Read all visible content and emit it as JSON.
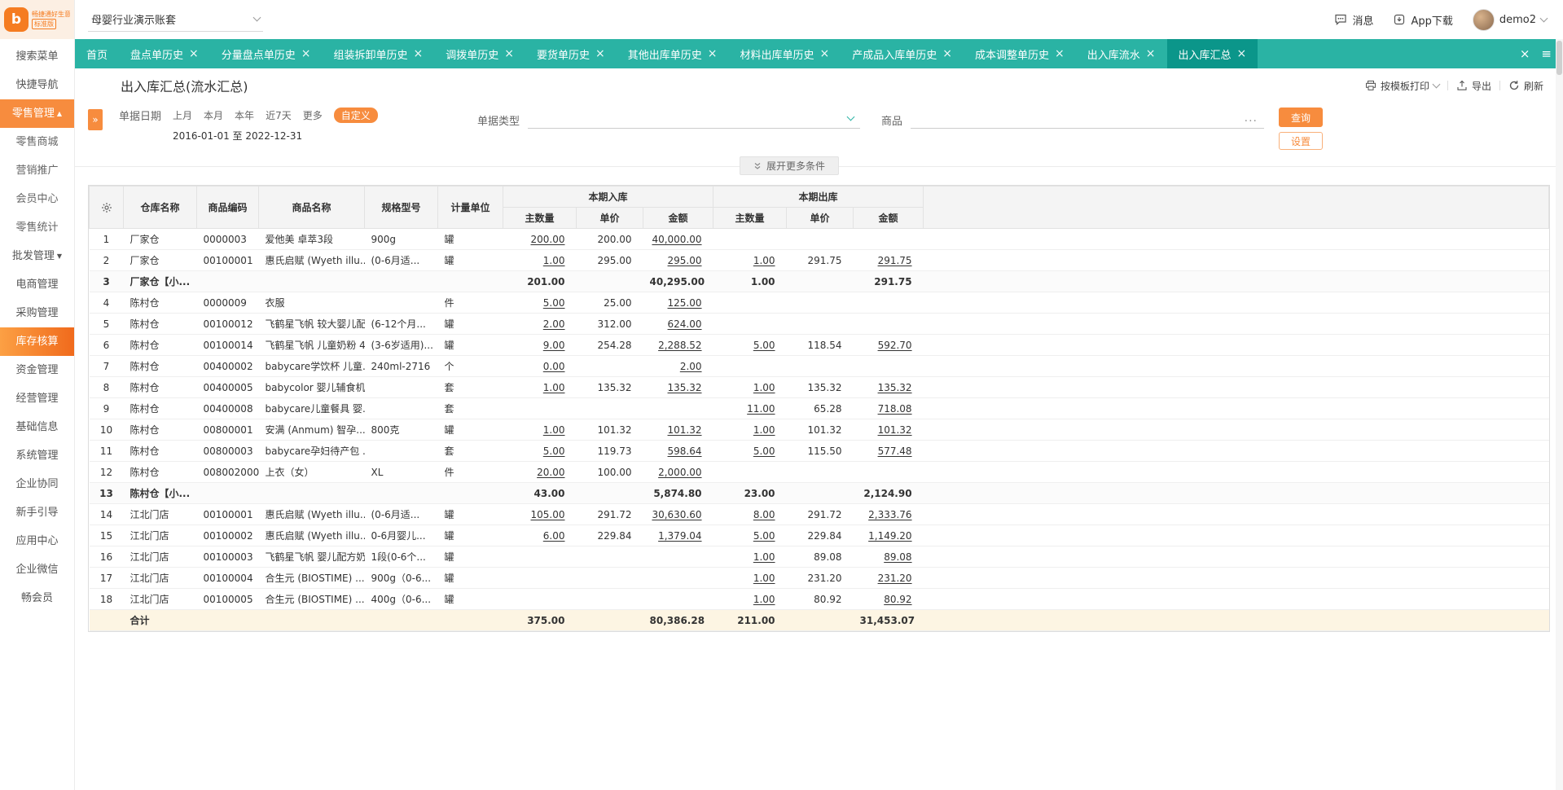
{
  "topbar": {
    "logo_title": "畅捷通好生意",
    "logo_badge": "标准版",
    "account_select": "母婴行业演示账套",
    "messages_label": "消息",
    "app_download_label": "App下载",
    "username": "demo2"
  },
  "tabs": [
    {
      "label": "首页",
      "closable": false,
      "active": false
    },
    {
      "label": "盘点单历史",
      "closable": true,
      "active": false
    },
    {
      "label": "分量盘点单历史",
      "closable": true,
      "active": false
    },
    {
      "label": "组装拆卸单历史",
      "closable": true,
      "active": false
    },
    {
      "label": "调拨单历史",
      "closable": true,
      "active": false
    },
    {
      "label": "要货单历史",
      "closable": true,
      "active": false
    },
    {
      "label": "其他出库单历史",
      "closable": true,
      "active": false
    },
    {
      "label": "材料出库单历史",
      "closable": true,
      "active": false
    },
    {
      "label": "产成品入库单历史",
      "closable": true,
      "active": false
    },
    {
      "label": "成本调整单历史",
      "closable": true,
      "active": false
    },
    {
      "label": "出入库流水",
      "closable": true,
      "active": false
    },
    {
      "label": "出入库汇总",
      "closable": true,
      "active": true
    }
  ],
  "sidebar": [
    {
      "label": "搜索菜单",
      "type": "plain"
    },
    {
      "label": "快捷导航",
      "type": "plain"
    },
    {
      "label": "零售管理",
      "type": "group-open",
      "arrow": "up"
    },
    {
      "label": "零售商城",
      "type": "child"
    },
    {
      "label": "营销推广",
      "type": "child"
    },
    {
      "label": "会员中心",
      "type": "child"
    },
    {
      "label": "零售统计",
      "type": "child"
    },
    {
      "label": "批发管理",
      "type": "group",
      "arrow": "down"
    },
    {
      "label": "电商管理",
      "type": "plain"
    },
    {
      "label": "采购管理",
      "type": "plain"
    },
    {
      "label": "库存核算",
      "type": "active"
    },
    {
      "label": "资金管理",
      "type": "plain"
    },
    {
      "label": "经营管理",
      "type": "plain"
    },
    {
      "label": "基础信息",
      "type": "plain"
    },
    {
      "label": "系统管理",
      "type": "plain"
    },
    {
      "label": "企业协同",
      "type": "plain"
    },
    {
      "label": "新手引导",
      "type": "plain"
    },
    {
      "label": "应用中心",
      "type": "plain"
    },
    {
      "label": "企业微信",
      "type": "plain"
    },
    {
      "label": "畅会员",
      "type": "plain"
    }
  ],
  "page": {
    "title": "出入库汇总(流水汇总)",
    "print_label": "按模板打印",
    "export_label": "导出",
    "refresh_label": "刷新"
  },
  "filters": {
    "date_label": "单据日期",
    "date_options": [
      "上月",
      "本月",
      "本年",
      "近7天",
      "更多"
    ],
    "custom_badge": "自定义",
    "date_range": "2016-01-01 至 2022-12-31",
    "doc_type_label": "单据类型",
    "product_label": "商品",
    "query_button": "查询",
    "settings_button": "设置",
    "expand_more": "展开更多条件"
  },
  "colors": {
    "teal": "#2ab3a4",
    "teal_active": "#0b968a",
    "orange": "#f78c3e",
    "total_row_bg": "#fdf5e3"
  },
  "table": {
    "headers": {
      "warehouse": "仓库名称",
      "code": "商品编码",
      "name": "商品名称",
      "spec": "规格型号",
      "unit": "计量单位",
      "in_group": "本期入库",
      "out_group": "本期出库",
      "qty": "主数量",
      "price": "单价",
      "amount": "金额"
    },
    "rows": [
      {
        "idx": "1",
        "warehouse": "厂家仓",
        "code": "0000003",
        "name": "爱他美 卓萃3段",
        "spec": "900g",
        "unit": "罐",
        "in_qty": "200.00",
        "in_price": "200.00",
        "in_amount": "40,000.00",
        "out_qty": "",
        "out_price": "",
        "out_amount": "",
        "type": "normal"
      },
      {
        "idx": "2",
        "warehouse": "厂家仓",
        "code": "00100001",
        "name": "惠氏启赋 (Wyeth illu...",
        "spec": "(0-6月适...",
        "unit": "罐",
        "in_qty": "1.00",
        "in_price": "295.00",
        "in_amount": "295.00",
        "out_qty": "1.00",
        "out_price": "291.75",
        "out_amount": "291.75",
        "type": "normal"
      },
      {
        "idx": "3",
        "warehouse": "厂家仓【小...",
        "code": "",
        "name": "",
        "spec": "",
        "unit": "",
        "in_qty": "201.00",
        "in_price": "",
        "in_amount": "40,295.00",
        "out_qty": "1.00",
        "out_price": "",
        "out_amount": "291.75",
        "type": "subtotal"
      },
      {
        "idx": "4",
        "warehouse": "陈村仓",
        "code": "0000009",
        "name": "衣服",
        "spec": "",
        "unit": "件",
        "in_qty": "5.00",
        "in_price": "25.00",
        "in_amount": "125.00",
        "out_qty": "",
        "out_price": "",
        "out_amount": "",
        "type": "normal"
      },
      {
        "idx": "5",
        "warehouse": "陈村仓",
        "code": "00100012",
        "name": "飞鹤星飞帆 较大婴儿配...",
        "spec": "(6-12个月...",
        "unit": "罐",
        "in_qty": "2.00",
        "in_price": "312.00",
        "in_amount": "624.00",
        "out_qty": "",
        "out_price": "",
        "out_amount": "",
        "type": "normal"
      },
      {
        "idx": "6",
        "warehouse": "陈村仓",
        "code": "00100014",
        "name": "飞鹤星飞帆 儿童奶粉 4...",
        "spec": "(3-6岁适用)...",
        "unit": "罐",
        "in_qty": "9.00",
        "in_price": "254.28",
        "in_amount": "2,288.52",
        "out_qty": "5.00",
        "out_price": "118.54",
        "out_amount": "592.70",
        "type": "normal"
      },
      {
        "idx": "7",
        "warehouse": "陈村仓",
        "code": "00400002",
        "name": "babycare学饮杯 儿童...",
        "spec": "240ml-2716",
        "unit": "个",
        "in_qty": "0.00",
        "in_price": "",
        "in_amount": "2.00",
        "out_qty": "",
        "out_price": "",
        "out_amount": "",
        "type": "normal"
      },
      {
        "idx": "8",
        "warehouse": "陈村仓",
        "code": "00400005",
        "name": "babycolor 婴儿辅食机...",
        "spec": "",
        "unit": "套",
        "in_qty": "1.00",
        "in_price": "135.32",
        "in_amount": "135.32",
        "out_qty": "1.00",
        "out_price": "135.32",
        "out_amount": "135.32",
        "type": "normal"
      },
      {
        "idx": "9",
        "warehouse": "陈村仓",
        "code": "00400008",
        "name": "babycare儿童餐具 婴...",
        "spec": "",
        "unit": "套",
        "in_qty": "",
        "in_price": "",
        "in_amount": "",
        "out_qty": "11.00",
        "out_price": "65.28",
        "out_amount": "718.08",
        "type": "normal"
      },
      {
        "idx": "10",
        "warehouse": "陈村仓",
        "code": "00800001",
        "name": "安满 (Anmum) 智孕...",
        "spec": "800克",
        "unit": "罐",
        "in_qty": "1.00",
        "in_price": "101.32",
        "in_amount": "101.32",
        "out_qty": "1.00",
        "out_price": "101.32",
        "out_amount": "101.32",
        "type": "normal"
      },
      {
        "idx": "11",
        "warehouse": "陈村仓",
        "code": "00800003",
        "name": "babycare孕妇待产包 ...",
        "spec": "",
        "unit": "套",
        "in_qty": "5.00",
        "in_price": "119.73",
        "in_amount": "598.64",
        "out_qty": "5.00",
        "out_price": "115.50",
        "out_amount": "577.48",
        "type": "normal"
      },
      {
        "idx": "12",
        "warehouse": "陈村仓",
        "code": "008002000...",
        "name": "上衣（女）",
        "spec": "XL",
        "unit": "件",
        "in_qty": "20.00",
        "in_price": "100.00",
        "in_amount": "2,000.00",
        "out_qty": "",
        "out_price": "",
        "out_amount": "",
        "type": "normal"
      },
      {
        "idx": "13",
        "warehouse": "陈村仓【小...",
        "code": "",
        "name": "",
        "spec": "",
        "unit": "",
        "in_qty": "43.00",
        "in_price": "",
        "in_amount": "5,874.80",
        "out_qty": "23.00",
        "out_price": "",
        "out_amount": "2,124.90",
        "type": "subtotal"
      },
      {
        "idx": "14",
        "warehouse": "江北门店",
        "code": "00100001",
        "name": "惠氏启赋 (Wyeth illu...",
        "spec": "(0-6月适...",
        "unit": "罐",
        "in_qty": "105.00",
        "in_price": "291.72",
        "in_amount": "30,630.60",
        "out_qty": "8.00",
        "out_price": "291.72",
        "out_amount": "2,333.76",
        "type": "normal"
      },
      {
        "idx": "15",
        "warehouse": "江北门店",
        "code": "00100002",
        "name": "惠氏启赋 (Wyeth illu...",
        "spec": "0-6月婴儿...",
        "unit": "罐",
        "in_qty": "6.00",
        "in_price": "229.84",
        "in_amount": "1,379.04",
        "out_qty": "5.00",
        "out_price": "229.84",
        "out_amount": "1,149.20",
        "type": "normal"
      },
      {
        "idx": "16",
        "warehouse": "江北门店",
        "code": "00100003",
        "name": "飞鹤星飞帆 婴儿配方奶...",
        "spec": "1段(0-6个...",
        "unit": "罐",
        "in_qty": "",
        "in_price": "",
        "in_amount": "",
        "out_qty": "1.00",
        "out_price": "89.08",
        "out_amount": "89.08",
        "type": "normal"
      },
      {
        "idx": "17",
        "warehouse": "江北门店",
        "code": "00100004",
        "name": "合生元 (BIOSTIME) ...",
        "spec": "900g（0-6...",
        "unit": "罐",
        "in_qty": "",
        "in_price": "",
        "in_amount": "",
        "out_qty": "1.00",
        "out_price": "231.20",
        "out_amount": "231.20",
        "type": "normal"
      },
      {
        "idx": "18",
        "warehouse": "江北门店",
        "code": "00100005",
        "name": "合生元 (BIOSTIME) ...",
        "spec": "400g（0-6...",
        "unit": "罐",
        "in_qty": "",
        "in_price": "",
        "in_amount": "",
        "out_qty": "1.00",
        "out_price": "80.92",
        "out_amount": "80.92",
        "type": "normal"
      },
      {
        "idx": "",
        "warehouse": "合计",
        "code": "",
        "name": "",
        "spec": "",
        "unit": "",
        "in_qty": "375.00",
        "in_price": "",
        "in_amount": "80,386.28",
        "out_qty": "211.00",
        "out_price": "",
        "out_amount": "31,453.07",
        "type": "total"
      }
    ]
  }
}
